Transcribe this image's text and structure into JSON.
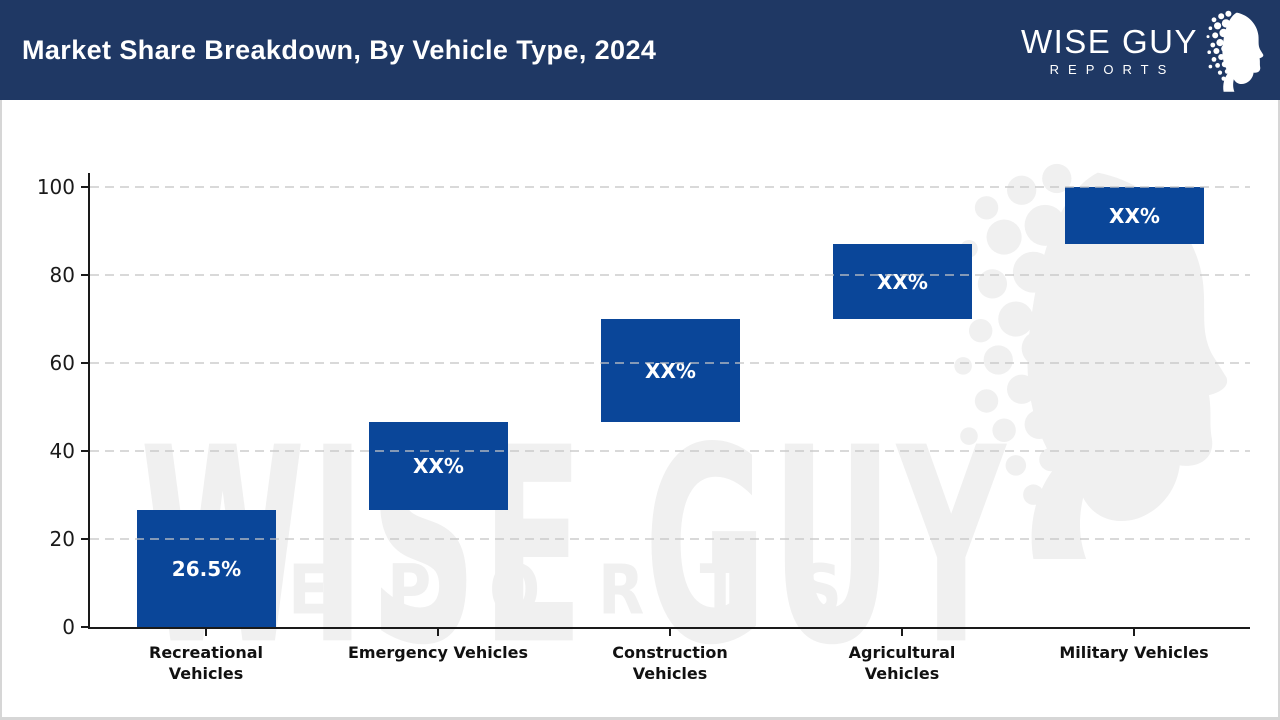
{
  "header": {
    "title": "Market Share Breakdown, By Vehicle Type, 2024",
    "logo": {
      "name": "WISE GUY",
      "sub": "REPORTS"
    }
  },
  "watermark": {
    "name": "WISE GUY",
    "sub": "REPORTS"
  },
  "colors": {
    "header_bg": "#1f3864",
    "bar": "#0a4699",
    "axis": "#1a1a1a",
    "grid_rgba": "rgba(197,197,197,0.65)",
    "watermark": "#f0f0f0",
    "bar_label": "#ffffff",
    "tick_label": "#1a1a1a",
    "frame_border": "#d6d6d6"
  },
  "chart_data": {
    "type": "bar",
    "variant": "waterfall",
    "title": "Market Share Breakdown, By Vehicle Type, 2024",
    "categories": [
      "Recreational\nVehicles",
      "Emergency Vehicles",
      "Construction\nVehicles",
      "Agricultural\nVehicles",
      "Military Vehicles"
    ],
    "bars": [
      {
        "category": "Recreational Vehicles",
        "start": 0,
        "end": 26.5,
        "label": "26.5%"
      },
      {
        "category": "Emergency Vehicles",
        "start": 26.5,
        "end": 46.5,
        "label": "XX%"
      },
      {
        "category": "Construction Vehicles",
        "start": 46.5,
        "end": 70,
        "label": "XX%"
      },
      {
        "category": "Agricultural Vehicles",
        "start": 70,
        "end": 87,
        "label": "XX%"
      },
      {
        "category": "Military Vehicles",
        "start": 87,
        "end": 100,
        "label": "XX%"
      }
    ],
    "yticks": [
      0,
      20,
      40,
      60,
      80,
      100
    ],
    "ylim": [
      0,
      100
    ],
    "xlabel": "",
    "ylabel": "",
    "grid": true,
    "legend": false
  }
}
